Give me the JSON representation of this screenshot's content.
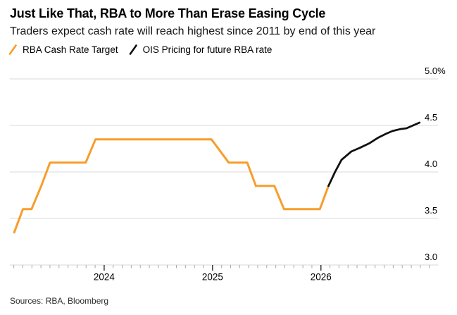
{
  "header": {
    "title": "Just Like That, RBA to More Than Erase Easing Cycle",
    "subtitle": "Traders expect cash rate will reach highest since 2011 by end of this year"
  },
  "legend": {
    "items": [
      {
        "label": "RBA Cash Rate Target",
        "color": "#F79D2C"
      },
      {
        "label": "OIS Pricing for future RBA rate",
        "color": "#111111"
      }
    ]
  },
  "footer": {
    "sources_label": "Sources: RBA, Bloomberg"
  },
  "chart_data": {
    "type": "line",
    "title": "Just Like That, RBA to More Than Erase Easing Cycle",
    "subtitle": "Traders expect cash rate will reach highest since 2011 by end of this year",
    "grid": true,
    "legend_position": "top-left",
    "x_axis": {
      "range": [
        2023.13,
        2027.08
      ],
      "major_ticks": [
        2024,
        2025,
        2026
      ],
      "tick_labels": [
        "2024",
        "2025",
        "2026"
      ],
      "minor_ticks": "monthly"
    },
    "y_axis": {
      "side": "right",
      "range": [
        3.0,
        5.0
      ],
      "ticks": [
        3.0,
        3.5,
        4.0,
        4.5,
        5.0
      ],
      "tick_labels": [
        "3.0",
        "3.5",
        "4.0",
        "4.5",
        "5.0%"
      ]
    },
    "series": [
      {
        "name": "RBA Cash Rate Target",
        "color": "#F79D2C",
        "points": [
          [
            2023.17,
            3.35
          ],
          [
            2023.25,
            3.6
          ],
          [
            2023.33,
            3.6
          ],
          [
            2023.42,
            3.85
          ],
          [
            2023.5,
            4.1
          ],
          [
            2023.83,
            4.1
          ],
          [
            2023.92,
            4.35
          ],
          [
            2024.99,
            4.35
          ],
          [
            2025.15,
            4.1
          ],
          [
            2025.32,
            4.1
          ],
          [
            2025.4,
            3.85
          ],
          [
            2025.57,
            3.85
          ],
          [
            2025.66,
            3.6
          ],
          [
            2025.99,
            3.6
          ],
          [
            2026.07,
            3.85
          ]
        ]
      },
      {
        "name": "OIS Pricing for future RBA rate",
        "color": "#111111",
        "points": [
          [
            2026.07,
            3.85
          ],
          [
            2026.13,
            4.0
          ],
          [
            2026.19,
            4.13
          ],
          [
            2026.28,
            4.22
          ],
          [
            2026.36,
            4.26
          ],
          [
            2026.45,
            4.31
          ],
          [
            2026.53,
            4.37
          ],
          [
            2026.6,
            4.41
          ],
          [
            2026.66,
            4.44
          ],
          [
            2026.73,
            4.46
          ],
          [
            2026.79,
            4.47
          ],
          [
            2026.85,
            4.5
          ],
          [
            2026.91,
            4.53
          ]
        ]
      }
    ]
  }
}
